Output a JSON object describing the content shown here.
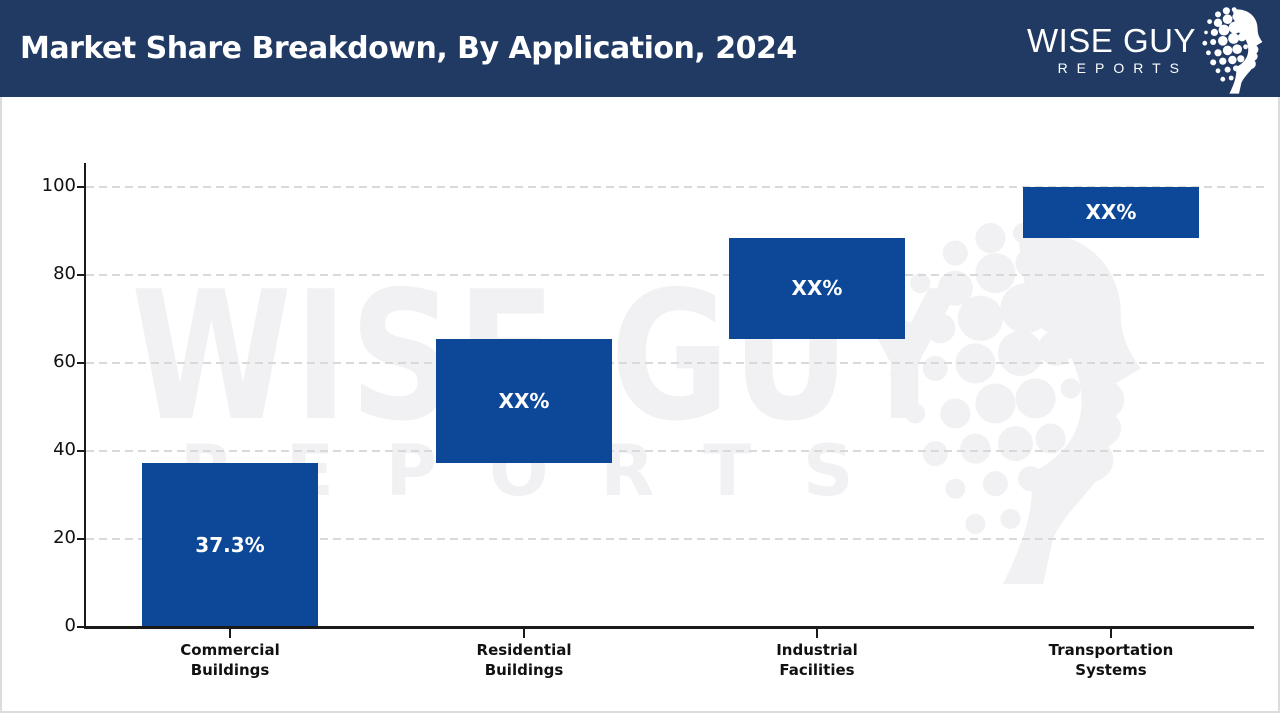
{
  "header": {
    "title": "Market Share Breakdown, By Application, 2024",
    "logo": {
      "line1": "WISE GUY",
      "line2": "REPORTS"
    }
  },
  "watermark": {
    "line1": "WISE GUY",
    "line2": "REPORTS"
  },
  "colors": {
    "header_bg": "#213a64",
    "bar_blue": "#0d4798",
    "gridline_gray": "#d9d9d9",
    "axis_black": "#1a1a1a",
    "watermark_gray": "#f1f1f4",
    "frame_gray": "#dcdcdc",
    "text_white": "#ffffff"
  },
  "chart_data": {
    "type": "bar",
    "variant": "floating-segment-waterfall",
    "title": "Market Share Breakdown, By Application, 2024",
    "categories": [
      "Commercial Buildings",
      "Residential Buildings",
      "Industrial Facilities",
      "Transportation Systems"
    ],
    "bars": [
      {
        "category": "Commercial Buildings",
        "start": 0,
        "end": 37.3,
        "label": "37.3%"
      },
      {
        "category": "Residential Buildings",
        "start": 37.3,
        "end": 65.5,
        "label": "XX%"
      },
      {
        "category": "Industrial Facilities",
        "start": 65.5,
        "end": 88.5,
        "label": "XX%"
      },
      {
        "category": "Transportation Systems",
        "start": 88.5,
        "end": 100,
        "label": "XX%"
      }
    ],
    "yticks": [
      0,
      20,
      40,
      60,
      80,
      100
    ],
    "ylim": [
      0,
      105.5
    ],
    "xlabel": "",
    "ylabel": "",
    "grid": "horizontal-dashed",
    "legend": "none",
    "bar_color": "#0d4798",
    "bar_label_color": "#ffffff"
  }
}
